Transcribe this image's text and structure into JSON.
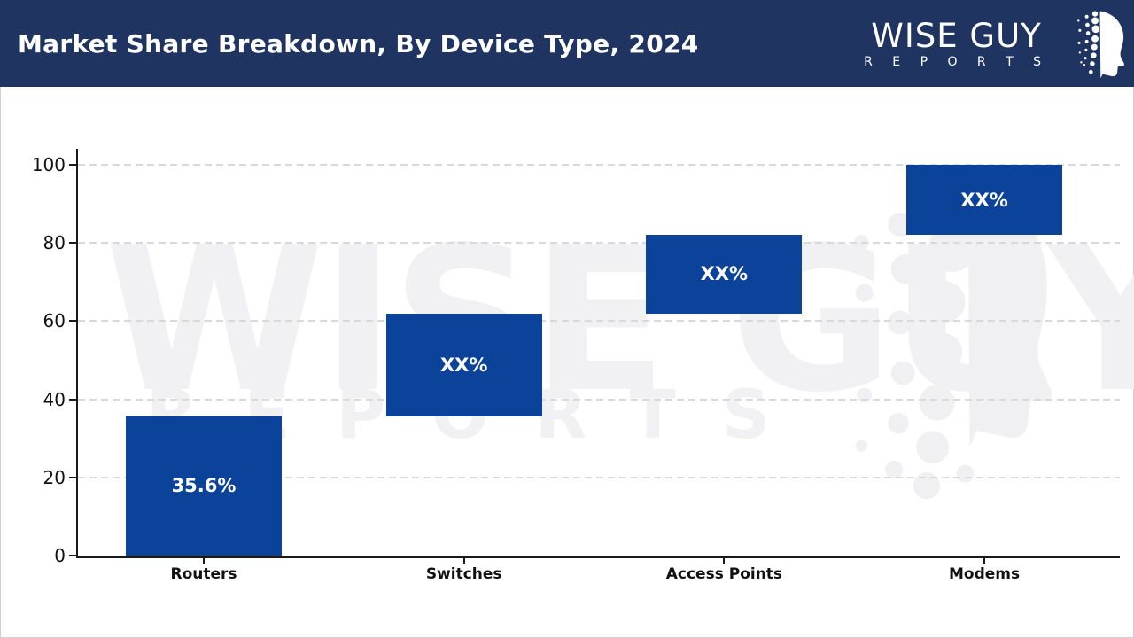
{
  "header": {
    "title": "Market Share Breakdown, By Device Type, 2024",
    "logo": {
      "line1": "WISE GUY",
      "line2": "R E P O R T S"
    }
  },
  "watermark": {
    "line1": "WISE GUY",
    "line2": "REPORTS"
  },
  "colors": {
    "header_bg": "#1f3461",
    "bar": "#0a4399",
    "bar_label_text": "#ffffff",
    "grid": "#d9d9d9",
    "axis": "#1a1a1a",
    "watermark": "#f1f1f4",
    "title_text": "#ffffff"
  },
  "chart_data": {
    "type": "bar",
    "subtype": "waterfall",
    "title": "Market Share Breakdown, By Device Type, 2024",
    "categories": [
      "Routers",
      "Switches",
      "Access Points",
      "Modems"
    ],
    "segments": [
      {
        "category": "Routers",
        "start": 0,
        "end": 35.6,
        "label": "35.6%"
      },
      {
        "category": "Switches",
        "start": 35.6,
        "end": 62,
        "label": "XX%"
      },
      {
        "category": "Access Points",
        "start": 62,
        "end": 82,
        "label": "XX%"
      },
      {
        "category": "Modems",
        "start": 82,
        "end": 100,
        "label": "XX%"
      }
    ],
    "ylim": [
      0,
      100
    ],
    "yticks": [
      0,
      20,
      40,
      60,
      80,
      100
    ],
    "xlabel": "",
    "ylabel": "",
    "grid": "horizontal-dashed",
    "legend": "none"
  }
}
